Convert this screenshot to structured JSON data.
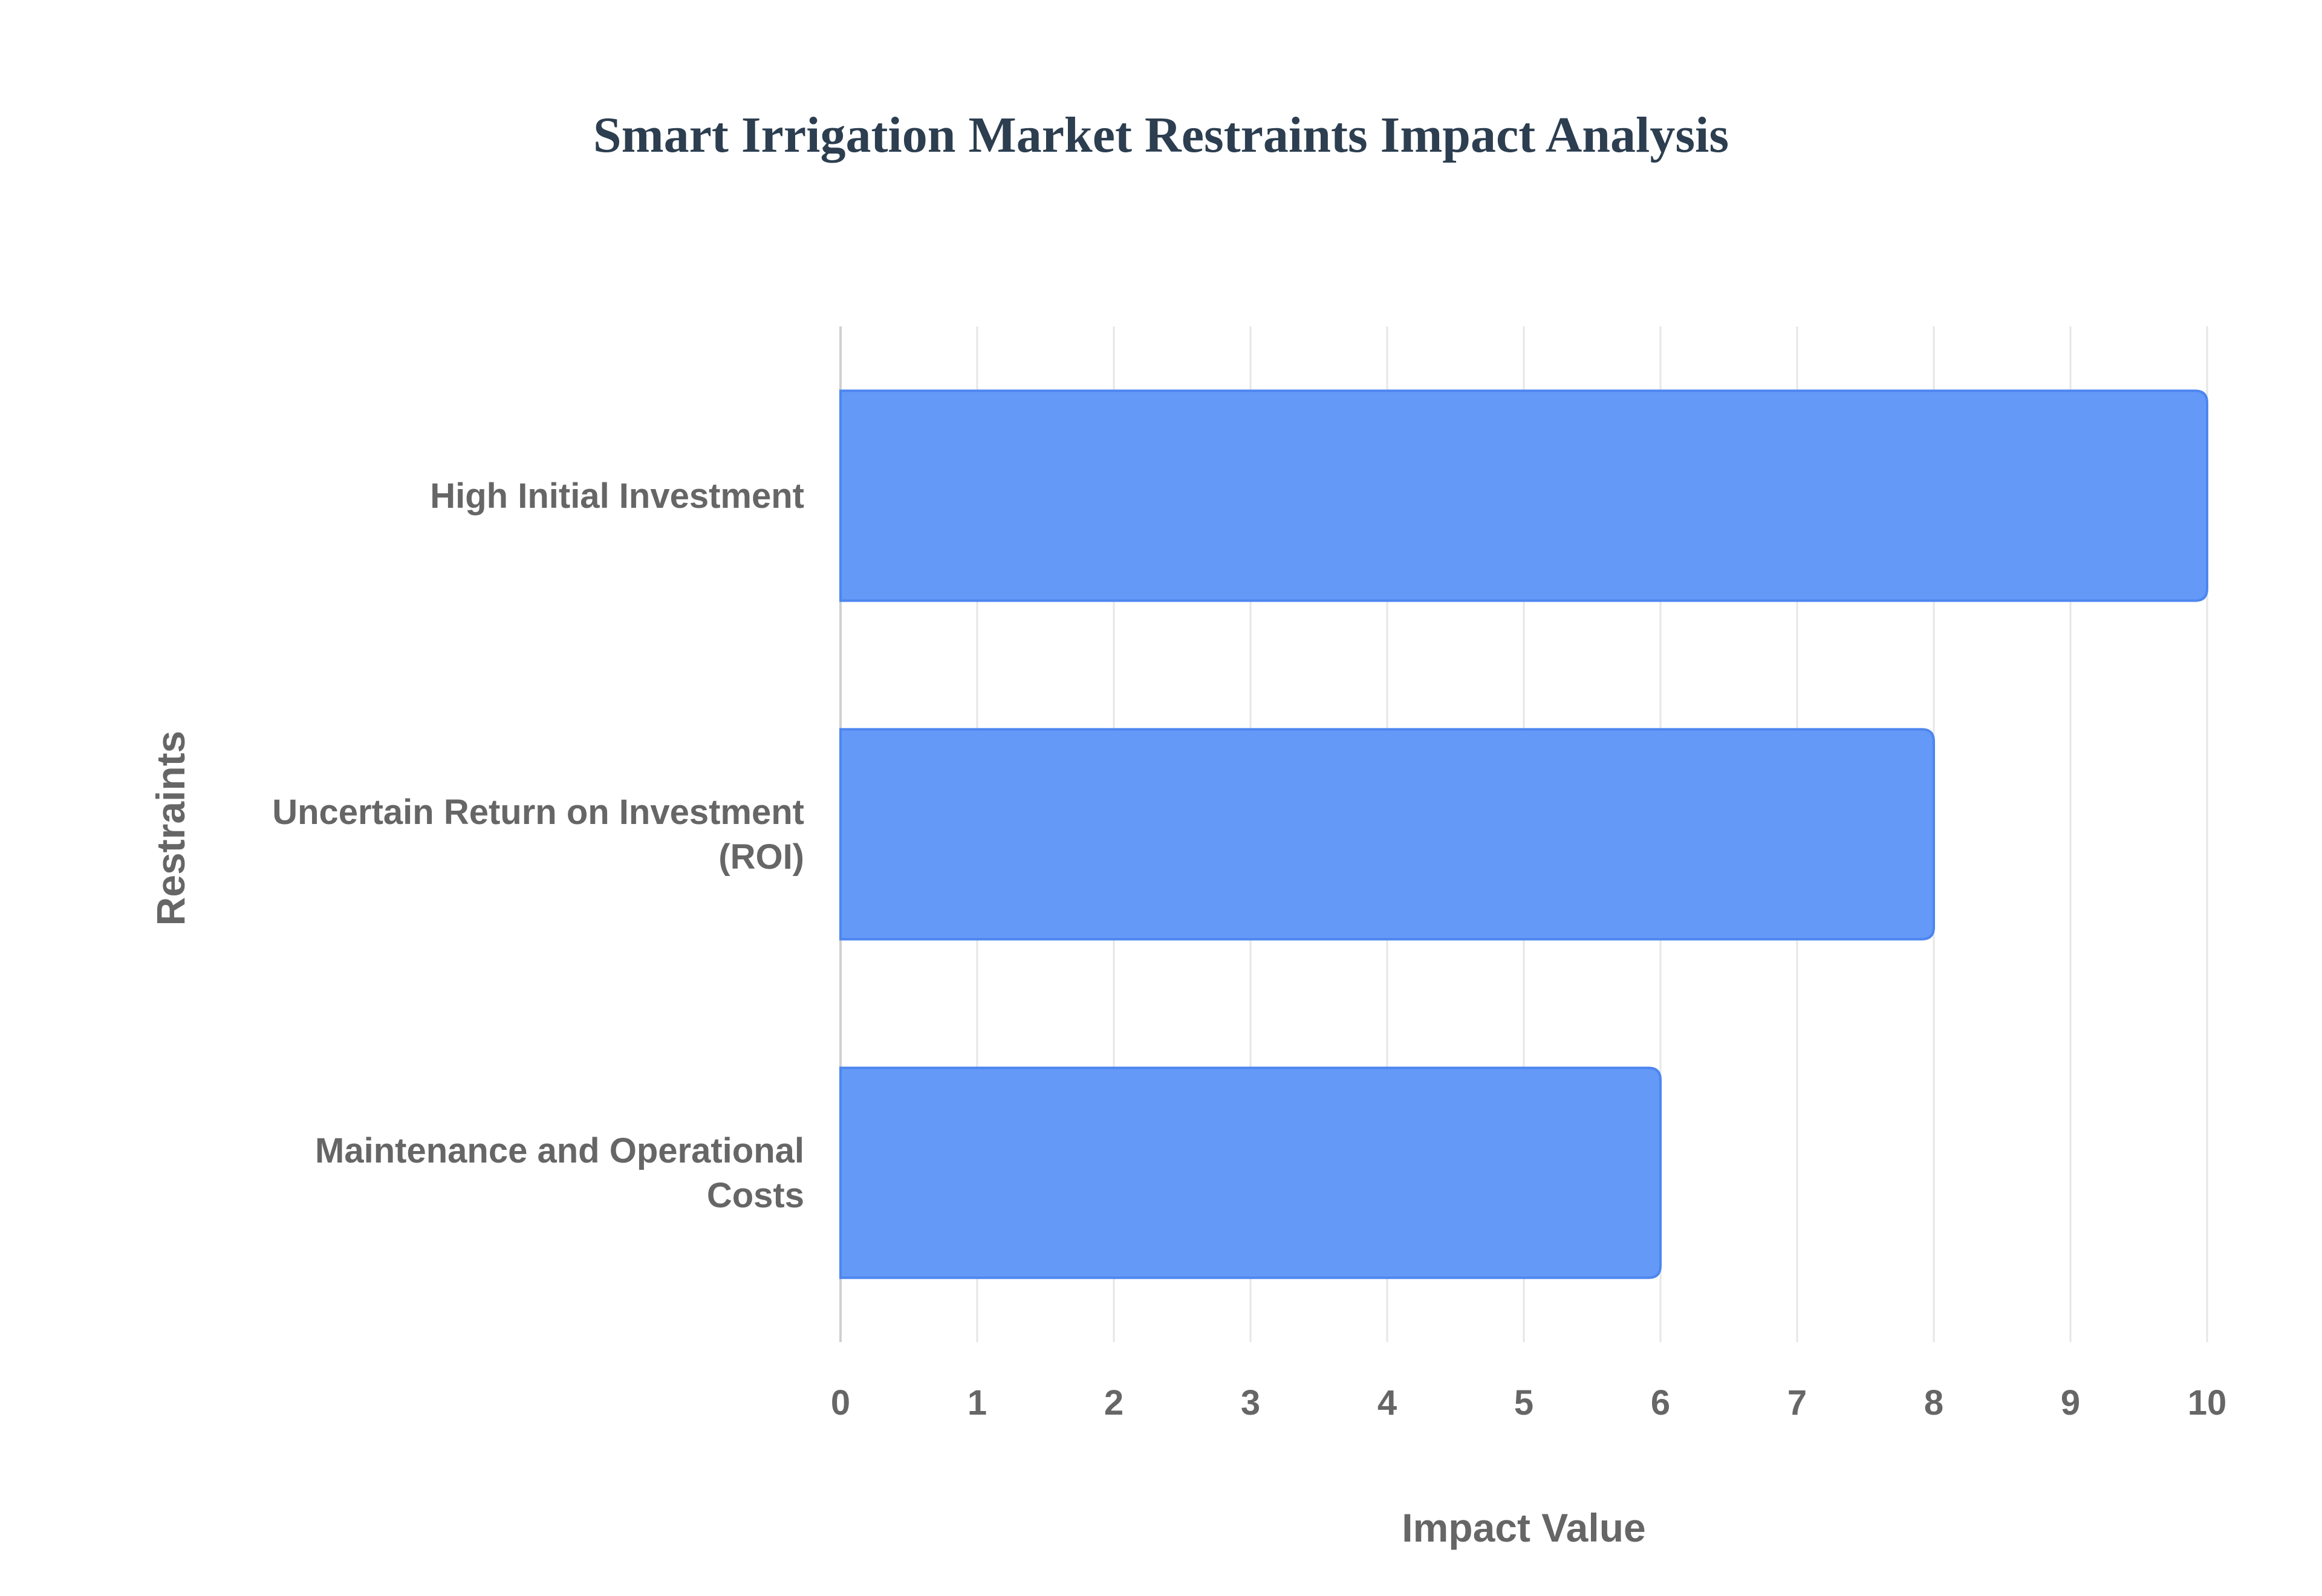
{
  "chart_data": {
    "type": "bar",
    "orientation": "horizontal",
    "title": "Smart Irrigation Market Restraints Impact Analysis",
    "xlabel": "Impact Value",
    "ylabel": "Restraints",
    "categories": [
      "High Initial Investment",
      "Uncertain Return on Investment (ROI)",
      "Maintenance and Operational Costs"
    ],
    "category_lines": [
      [
        "High Initial Investment"
      ],
      [
        "Uncertain Return on Investment",
        "(ROI)"
      ],
      [
        "Maintenance and Operational",
        "Costs"
      ]
    ],
    "values": [
      10,
      8,
      6
    ],
    "xlim": [
      0,
      10
    ],
    "xticks": [
      "0",
      "1",
      "2",
      "3",
      "4",
      "5",
      "6",
      "7",
      "8",
      "9",
      "10"
    ],
    "grid": true,
    "legend": "none",
    "bar_color": "#6499f7",
    "bar_border_color": "#4d86f0"
  }
}
